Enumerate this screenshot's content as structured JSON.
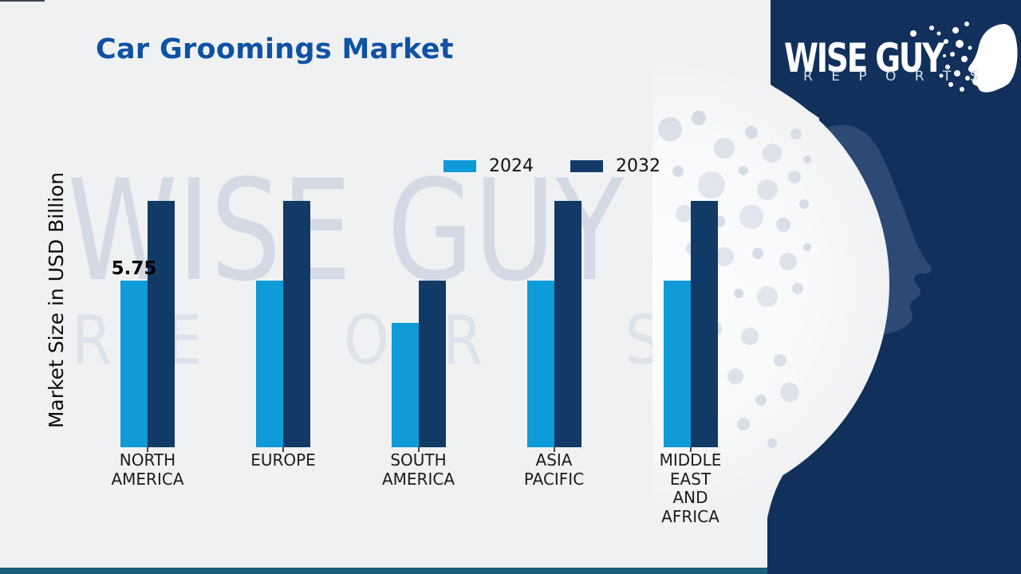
{
  "page": {
    "title": "Car Groomings Market"
  },
  "branding": {
    "logo_line1": "WISE GUY",
    "logo_line2": "R E P O R T S",
    "watermark_line1": "WISE GUY",
    "watermark_line2": "R E P O R T S"
  },
  "colors": {
    "title_blue": "#0e52a4",
    "bar_2024_blue": "#0f9ad8",
    "bar_2032_navy": "#123a67",
    "panel_navy": "#12305c",
    "footer_teal": "#1a5f79",
    "background": "#f0f1f2"
  },
  "chart_data": {
    "type": "bar",
    "title": "Car Groomings Market",
    "xlabel": "",
    "ylabel": "Market Size in USD Billion",
    "categories": [
      "NORTH AMERICA",
      "EUROPE",
      "SOUTH AMERICA",
      "ASIA PACIFIC",
      "MIDDLE EAST AND AFRICA"
    ],
    "categories_display": [
      "NORTH\nAMERICA",
      "EUROPE",
      "SOUTH\nAMERICA",
      "ASIA\nPACIFIC",
      "MIDDLE\nEAST\nAND\nAFRICA"
    ],
    "series": [
      {
        "name": "2024",
        "color": "#0f9ad8",
        "values": [
          5.75,
          5.75,
          4.3,
          5.75,
          5.75
        ]
      },
      {
        "name": "2032",
        "color": "#123a67",
        "values": [
          8.5,
          8.5,
          5.75,
          8.5,
          8.5
        ]
      }
    ],
    "data_labels": [
      {
        "series": "2024",
        "category": "NORTH AMERICA",
        "text": "5.75"
      }
    ],
    "legend_position": "top",
    "grid": false,
    "ylim": [
      0,
      9.5
    ],
    "note": "Only the 5.75 value is labeled in the figure; other values are estimated from bar heights."
  }
}
